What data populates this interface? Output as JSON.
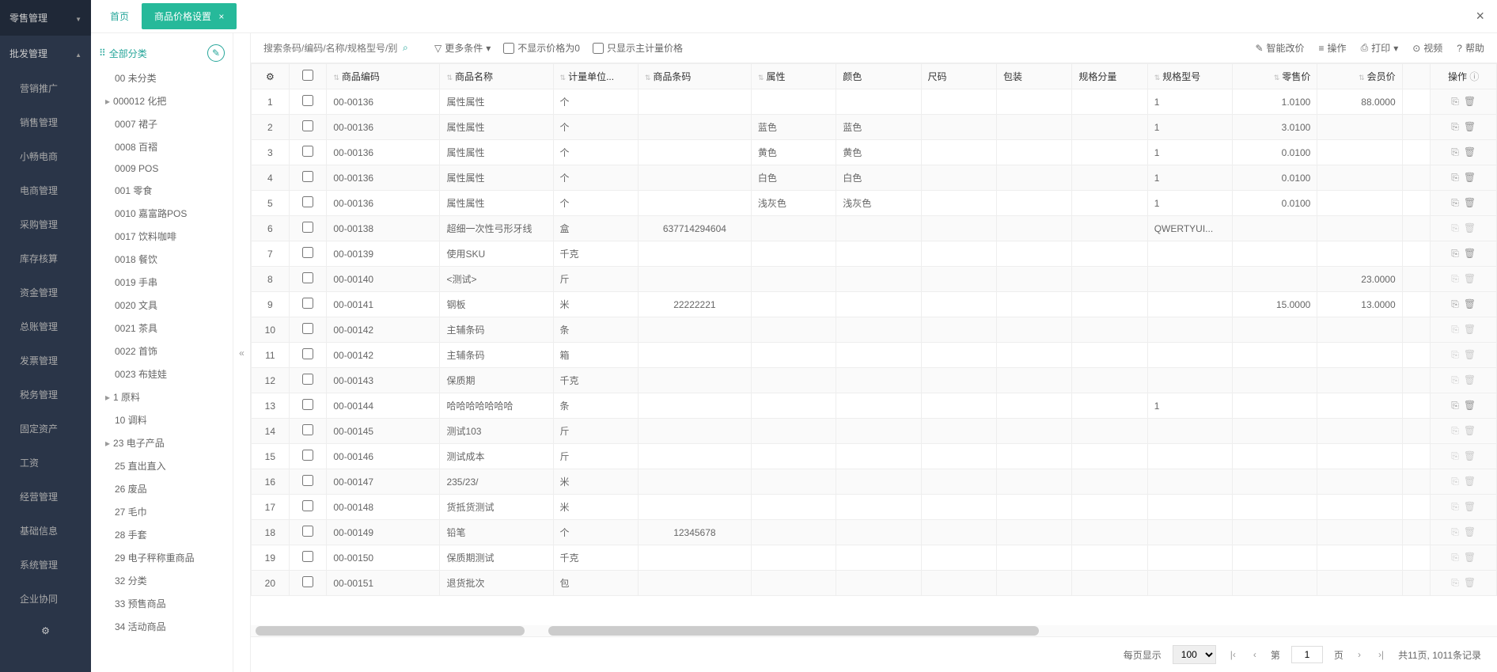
{
  "sidebar": {
    "groups": [
      {
        "label": "零售管理",
        "expanded": false
      },
      {
        "label": "批发管理",
        "expanded": true,
        "children": [
          {
            "label": "营销推广"
          },
          {
            "label": "销售管理"
          },
          {
            "label": "小畅电商"
          },
          {
            "label": "电商管理"
          },
          {
            "label": "采购管理"
          },
          {
            "label": "库存核算"
          },
          {
            "label": "资金管理"
          },
          {
            "label": "总账管理"
          },
          {
            "label": "发票管理"
          },
          {
            "label": "税务管理"
          },
          {
            "label": "固定资产"
          },
          {
            "label": "工资"
          },
          {
            "label": "经营管理"
          },
          {
            "label": "基础信息"
          },
          {
            "label": "系统管理"
          },
          {
            "label": "企业协同"
          }
        ]
      }
    ]
  },
  "tabs": {
    "home": "首页",
    "active": "商品价格设置"
  },
  "tree": {
    "root": "全部分类",
    "nodes": [
      {
        "label": "00 未分类"
      },
      {
        "label": "000012 化把",
        "children": true
      },
      {
        "label": "0007 裙子"
      },
      {
        "label": "0008 百褶"
      },
      {
        "label": "0009 POS"
      },
      {
        "label": "001 零食"
      },
      {
        "label": "0010 嘉富路POS"
      },
      {
        "label": "0017 饮料咖啡"
      },
      {
        "label": "0018 餐饮"
      },
      {
        "label": "0019 手串"
      },
      {
        "label": "0020 文具"
      },
      {
        "label": "0021 茶具"
      },
      {
        "label": "0022 首饰"
      },
      {
        "label": "0023 布娃娃"
      },
      {
        "label": "1 原料",
        "children": true
      },
      {
        "label": "10 调料"
      },
      {
        "label": "23 电子产品",
        "children": true
      },
      {
        "label": "25 直出直入"
      },
      {
        "label": "26 废品"
      },
      {
        "label": "27 毛巾"
      },
      {
        "label": "28 手套"
      },
      {
        "label": "29 电子秤称重商品"
      },
      {
        "label": "32 分类"
      },
      {
        "label": "33 预售商品"
      },
      {
        "label": "34 活动商品"
      }
    ]
  },
  "toolbar": {
    "search_placeholder": "搜索条码/编码/名称/规格型号/别名",
    "more": "更多条件",
    "hide_zero": "不显示价格为0",
    "main_unit": "只显示主计量价格",
    "smart": "智能改价",
    "op": "操作",
    "print": "打印",
    "video": "视频",
    "help": "帮助"
  },
  "table": {
    "cols": [
      "商品编码",
      "商品名称",
      "计量单位...",
      "商品条码",
      "属性",
      "颜色",
      "尺码",
      "包装",
      "规格分量",
      "规格型号",
      "零售价",
      "会员价"
    ],
    "op": "操作",
    "rows": [
      {
        "n": 1,
        "code": "00-00136",
        "name": "属性属性",
        "unit": "个",
        "bar": "",
        "attr": "",
        "color": "",
        "size": "",
        "pack": "",
        "spec": "",
        "model": "1",
        "retail": "1.0100",
        "member": "88.0000",
        "act": true
      },
      {
        "n": 2,
        "code": "00-00136",
        "name": "属性属性",
        "unit": "个",
        "bar": "",
        "attr": "蓝色",
        "color": "蓝色",
        "size": "",
        "pack": "",
        "spec": "",
        "model": "1",
        "retail": "3.0100",
        "member": "",
        "act": true
      },
      {
        "n": 3,
        "code": "00-00136",
        "name": "属性属性",
        "unit": "个",
        "bar": "",
        "attr": "黄色",
        "color": "黄色",
        "size": "",
        "pack": "",
        "spec": "",
        "model": "1",
        "retail": "0.0100",
        "member": "",
        "act": true
      },
      {
        "n": 4,
        "code": "00-00136",
        "name": "属性属性",
        "unit": "个",
        "bar": "",
        "attr": "白色",
        "color": "白色",
        "size": "",
        "pack": "",
        "spec": "",
        "model": "1",
        "retail": "0.0100",
        "member": "",
        "act": true
      },
      {
        "n": 5,
        "code": "00-00136",
        "name": "属性属性",
        "unit": "个",
        "bar": "",
        "attr": "浅灰色",
        "color": "浅灰色",
        "size": "",
        "pack": "",
        "spec": "",
        "model": "1",
        "retail": "0.0100",
        "member": "",
        "act": true
      },
      {
        "n": 6,
        "code": "00-00138",
        "name": "超细一次性弓形牙线",
        "unit": "盒",
        "bar": "637714294604",
        "attr": "",
        "color": "",
        "size": "",
        "pack": "",
        "spec": "",
        "model": "QWERTYUI...",
        "retail": "",
        "member": "",
        "act": false
      },
      {
        "n": 7,
        "code": "00-00139",
        "name": "使用SKU",
        "unit": "千克",
        "bar": "",
        "attr": "",
        "color": "",
        "size": "",
        "pack": "",
        "spec": "",
        "model": "",
        "retail": "",
        "member": "",
        "act": true
      },
      {
        "n": 8,
        "code": "00-00140",
        "name": "<测试>",
        "unit": "斤",
        "bar": "",
        "attr": "",
        "color": "",
        "size": "",
        "pack": "",
        "spec": "",
        "model": "",
        "retail": "",
        "member": "23.0000",
        "act": false
      },
      {
        "n": 9,
        "code": "00-00141",
        "name": "钢板",
        "unit": "米",
        "bar": "22222221",
        "attr": "",
        "color": "",
        "size": "",
        "pack": "",
        "spec": "",
        "model": "",
        "retail": "15.0000",
        "member": "13.0000",
        "act": true
      },
      {
        "n": 10,
        "code": "00-00142",
        "name": "主辅条码",
        "unit": "条",
        "bar": "",
        "attr": "",
        "color": "",
        "size": "",
        "pack": "",
        "spec": "",
        "model": "",
        "retail": "",
        "member": "",
        "act": false
      },
      {
        "n": 11,
        "code": "00-00142",
        "name": "主辅条码",
        "unit": "箱",
        "bar": "",
        "attr": "",
        "color": "",
        "size": "",
        "pack": "",
        "spec": "",
        "model": "",
        "retail": "",
        "member": "",
        "act": false
      },
      {
        "n": 12,
        "code": "00-00143",
        "name": "保质期",
        "unit": "千克",
        "bar": "",
        "attr": "",
        "color": "",
        "size": "",
        "pack": "",
        "spec": "",
        "model": "",
        "retail": "",
        "member": "",
        "act": false
      },
      {
        "n": 13,
        "code": "00-00144",
        "name": "哈哈哈哈哈哈哈",
        "unit": "条",
        "bar": "",
        "attr": "",
        "color": "",
        "size": "",
        "pack": "",
        "spec": "",
        "model": "1",
        "retail": "",
        "member": "",
        "act": true
      },
      {
        "n": 14,
        "code": "00-00145",
        "name": "测试103",
        "unit": "斤",
        "bar": "",
        "attr": "",
        "color": "",
        "size": "",
        "pack": "",
        "spec": "",
        "model": "",
        "retail": "",
        "member": "",
        "act": false
      },
      {
        "n": 15,
        "code": "00-00146",
        "name": "测试成本",
        "unit": "斤",
        "bar": "",
        "attr": "",
        "color": "",
        "size": "",
        "pack": "",
        "spec": "",
        "model": "",
        "retail": "",
        "member": "",
        "act": false
      },
      {
        "n": 16,
        "code": "00-00147",
        "name": "235/23/",
        "unit": "米",
        "bar": "",
        "attr": "",
        "color": "",
        "size": "",
        "pack": "",
        "spec": "",
        "model": "",
        "retail": "",
        "member": "",
        "act": false
      },
      {
        "n": 17,
        "code": "00-00148",
        "name": "货抵货测试",
        "unit": "米",
        "bar": "",
        "attr": "",
        "color": "",
        "size": "",
        "pack": "",
        "spec": "",
        "model": "",
        "retail": "",
        "member": "",
        "act": false
      },
      {
        "n": 18,
        "code": "00-00149",
        "name": "铅笔",
        "unit": "个",
        "bar": "12345678",
        "attr": "",
        "color": "",
        "size": "",
        "pack": "",
        "spec": "",
        "model": "",
        "retail": "",
        "member": "",
        "act": false
      },
      {
        "n": 19,
        "code": "00-00150",
        "name": "保质期测试",
        "unit": "千克",
        "bar": "",
        "attr": "",
        "color": "",
        "size": "",
        "pack": "",
        "spec": "",
        "model": "",
        "retail": "",
        "member": "",
        "act": false
      },
      {
        "n": 20,
        "code": "00-00151",
        "name": "退货批次",
        "unit": "包",
        "bar": "",
        "attr": "",
        "color": "",
        "size": "",
        "pack": "",
        "spec": "",
        "model": "",
        "retail": "",
        "member": "",
        "act": false
      }
    ]
  },
  "pager": {
    "per_label": "每页显示",
    "per_value": "100",
    "page_sep_l": "第",
    "page_value": "1",
    "page_sep_r": "页",
    "summary": "共11页, 1011条记录"
  }
}
